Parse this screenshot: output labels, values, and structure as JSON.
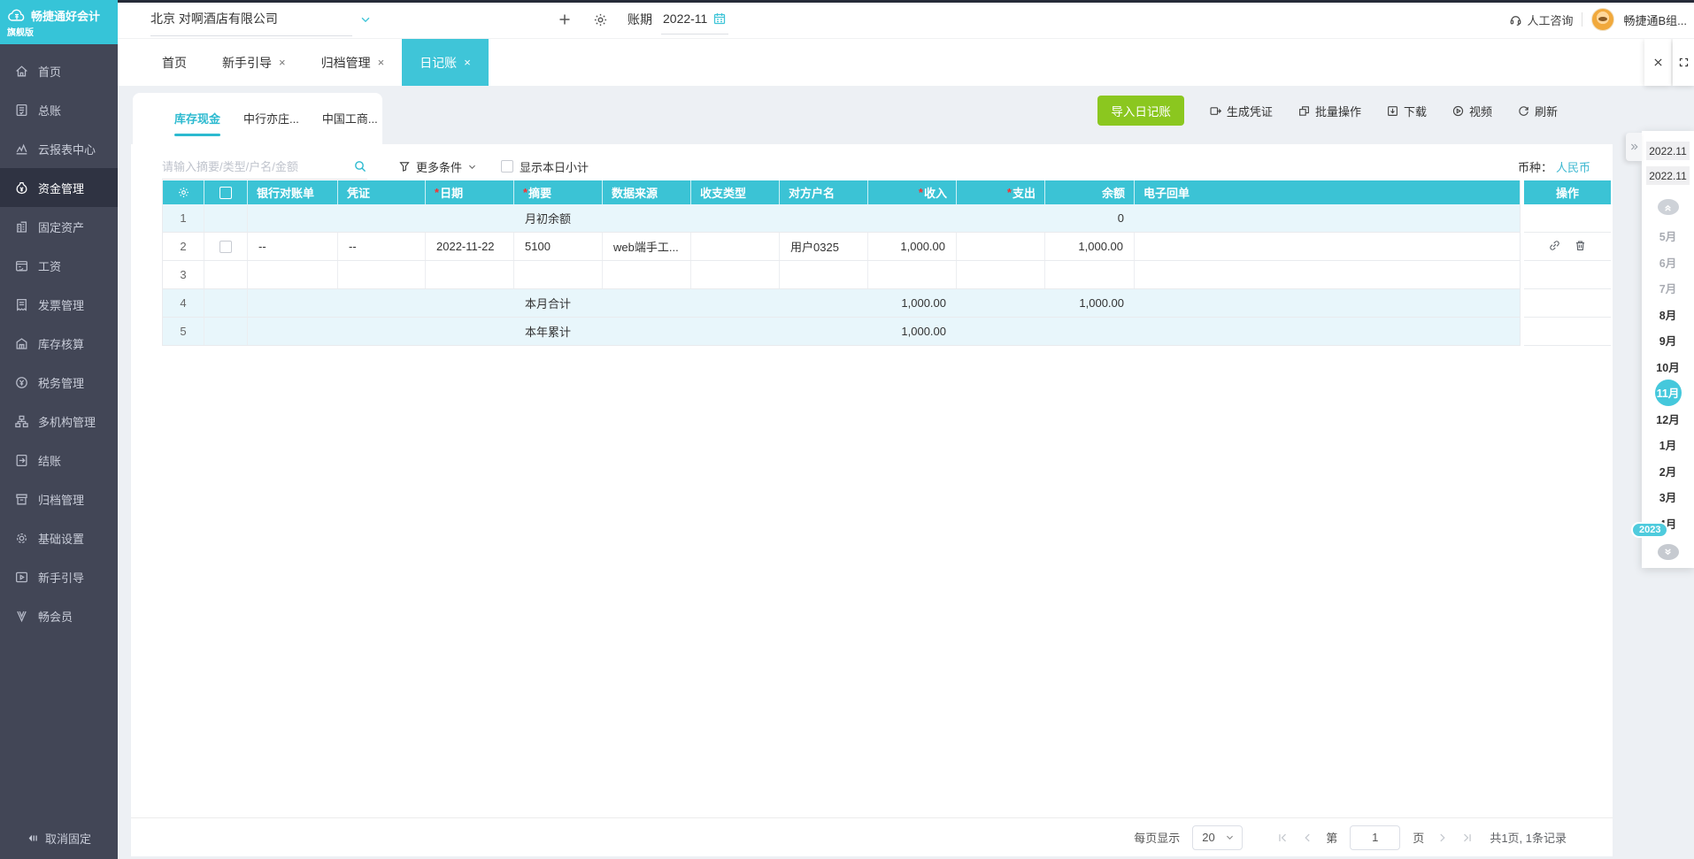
{
  "app": {
    "name": "畅捷通好会计",
    "edition": "旗舰版"
  },
  "colors": {
    "accent": "#3bc3d5",
    "accent_dark": "#2cbad0",
    "green_button": "#8bc71f",
    "sidebar_bg": "#424656",
    "sidebar_active": "#2f3342",
    "row_highlight": "#e8f6fb"
  },
  "topbar": {
    "company": "北京 对啊酒店有限公司",
    "period_label": "账期",
    "period_value": "2022-11",
    "support": "人工咨询",
    "user": "畅捷通B组..."
  },
  "sidebar": {
    "items": [
      {
        "label": "首页",
        "icon": "home-icon",
        "active": false
      },
      {
        "label": "总账",
        "icon": "ledger-icon",
        "active": false
      },
      {
        "label": "云报表中心",
        "icon": "cloud-report-icon",
        "active": false
      },
      {
        "label": "资金管理",
        "icon": "funds-icon",
        "active": true
      },
      {
        "label": "固定资产",
        "icon": "assets-icon",
        "active": false
      },
      {
        "label": "工资",
        "icon": "salary-icon",
        "active": false
      },
      {
        "label": "发票管理",
        "icon": "invoice-icon",
        "active": false
      },
      {
        "label": "库存核算",
        "icon": "inventory-icon",
        "active": false
      },
      {
        "label": "税务管理",
        "icon": "tax-icon",
        "active": false
      },
      {
        "label": "多机构管理",
        "icon": "org-icon",
        "active": false
      },
      {
        "label": "结账",
        "icon": "closing-icon",
        "active": false
      },
      {
        "label": "归档管理",
        "icon": "archive-icon",
        "active": false
      },
      {
        "label": "基础设置",
        "icon": "settings-icon",
        "active": false
      },
      {
        "label": "新手引导",
        "icon": "guide-icon",
        "active": false
      },
      {
        "label": "畅会员",
        "icon": "member-icon",
        "active": false
      }
    ],
    "collapse_label": "取消固定"
  },
  "tabs": [
    {
      "label": "首页",
      "closable": false,
      "active": false
    },
    {
      "label": "新手引导",
      "closable": true,
      "active": false
    },
    {
      "label": "归档管理",
      "closable": true,
      "active": false
    },
    {
      "label": "日记账",
      "closable": true,
      "active": true
    }
  ],
  "subtabs": [
    {
      "label": "库存现金",
      "active": true
    },
    {
      "label": "中行亦庄...",
      "active": false
    },
    {
      "label": "中国工商...",
      "active": false
    }
  ],
  "toolbar": {
    "import_label": "导入日记账",
    "actions": [
      {
        "label": "生成凭证",
        "icon": "voucher-icon"
      },
      {
        "label": "批量操作",
        "icon": "batch-icon"
      },
      {
        "label": "下载",
        "icon": "download-icon"
      },
      {
        "label": "视频",
        "icon": "video-icon"
      },
      {
        "label": "刷新",
        "icon": "refresh-icon"
      }
    ]
  },
  "filters": {
    "search_placeholder": "请输入摘要/类型/户名/金额",
    "more_conditions": "更多条件",
    "show_daily_subtotal": "显示本日小计",
    "currency_label": "币种：",
    "currency_value": "人民币"
  },
  "table": {
    "columns": [
      {
        "key": "num",
        "label": "",
        "icon": "gear-icon",
        "align": "center"
      },
      {
        "key": "check",
        "label": "",
        "icon": "checkbox",
        "align": "center"
      },
      {
        "key": "bank",
        "label": "银行对账单",
        "required": false
      },
      {
        "key": "voucher",
        "label": "凭证",
        "required": false
      },
      {
        "key": "date",
        "label": "日期",
        "required": true
      },
      {
        "key": "summary",
        "label": "摘要",
        "required": true
      },
      {
        "key": "source",
        "label": "数据来源",
        "required": false
      },
      {
        "key": "type",
        "label": "收支类型",
        "required": false
      },
      {
        "key": "payee",
        "label": "对方户名",
        "required": false
      },
      {
        "key": "income",
        "label": "收入",
        "required": true,
        "align": "right"
      },
      {
        "key": "expense",
        "label": "支出",
        "required": true,
        "align": "right"
      },
      {
        "key": "balance",
        "label": "余额",
        "required": false,
        "align": "right"
      },
      {
        "key": "doc",
        "label": "电子回单",
        "required": false
      }
    ],
    "op_column_label": "操作",
    "rows": [
      {
        "no": "1",
        "kind": "summary",
        "label": "月初余额",
        "income": "",
        "balance": "0"
      },
      {
        "no": "2",
        "kind": "data",
        "checked": false,
        "bank": "--",
        "voucher": "--",
        "date": "2022-11-22",
        "summary": "5100",
        "source": "web端手工...",
        "type": "",
        "payee": "用户0325",
        "income": "1,000.00",
        "expense": "",
        "balance": "1,000.00",
        "doc": "",
        "ops": [
          "link-icon",
          "trash-icon"
        ]
      },
      {
        "no": "3",
        "kind": "blank"
      },
      {
        "no": "4",
        "kind": "summary",
        "label": "本月合计",
        "income": "1,000.00",
        "balance": "1,000.00"
      },
      {
        "no": "5",
        "kind": "summary",
        "label": "本年累计",
        "income": "1,000.00",
        "balance": ""
      }
    ]
  },
  "month_panel": {
    "year_boxes": [
      "2022.11",
      "2022.11"
    ],
    "year_badge": "2023",
    "months": [
      {
        "label": "5月",
        "state": "dim"
      },
      {
        "label": "6月",
        "state": "dim"
      },
      {
        "label": "7月",
        "state": "dim"
      },
      {
        "label": "8月",
        "state": "normal"
      },
      {
        "label": "9月",
        "state": "normal"
      },
      {
        "label": "10月",
        "state": "normal"
      },
      {
        "label": "11月",
        "state": "active"
      },
      {
        "label": "12月",
        "state": "normal"
      },
      {
        "label": "1月",
        "state": "normal"
      },
      {
        "label": "2月",
        "state": "normal"
      },
      {
        "label": "3月",
        "state": "normal"
      },
      {
        "label": "4月",
        "state": "normal"
      }
    ]
  },
  "pagination": {
    "per_page_label": "每页显示",
    "per_page_value": "20",
    "page_prefix": "第",
    "page_value": "1",
    "page_suffix": "页",
    "total_text": "共1页, 1条记录"
  }
}
